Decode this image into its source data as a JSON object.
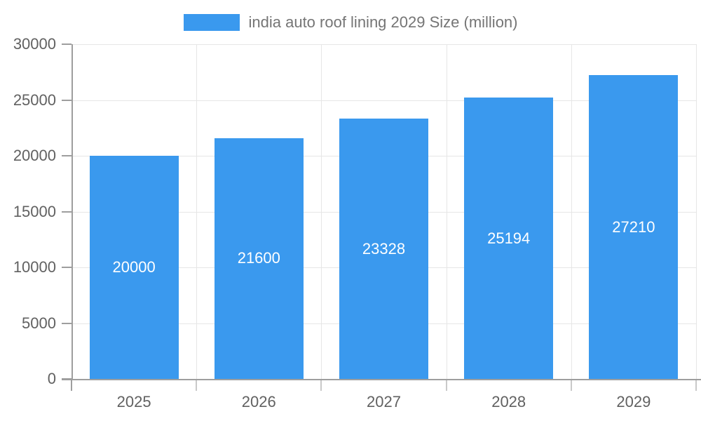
{
  "chart_data": {
    "type": "bar",
    "title": "",
    "legend": {
      "label": "india auto roof lining 2029 Size (million)",
      "position": "top"
    },
    "categories": [
      "2025",
      "2026",
      "2027",
      "2028",
      "2029"
    ],
    "series": [
      {
        "name": "india auto roof lining 2029 Size (million)",
        "values": [
          20000,
          21600,
          23328,
          25194,
          27210
        ]
      }
    ],
    "bar_value_labels": [
      "20000",
      "21600",
      "23328",
      "25194",
      "27210"
    ],
    "xlabel": "",
    "ylabel": "",
    "ylim": [
      0,
      30000
    ],
    "yticks": [
      0,
      5000,
      10000,
      15000,
      20000,
      25000,
      30000
    ],
    "grid": true,
    "colors": {
      "bar": "#3A99EE",
      "bar_label_text": "#FFFFFF",
      "axis_line": "#9E9E9E",
      "grid_line": "#E6E6E6",
      "tick_text": "#616161",
      "legend_text": "#757575",
      "background": "#FFFFFF"
    }
  }
}
